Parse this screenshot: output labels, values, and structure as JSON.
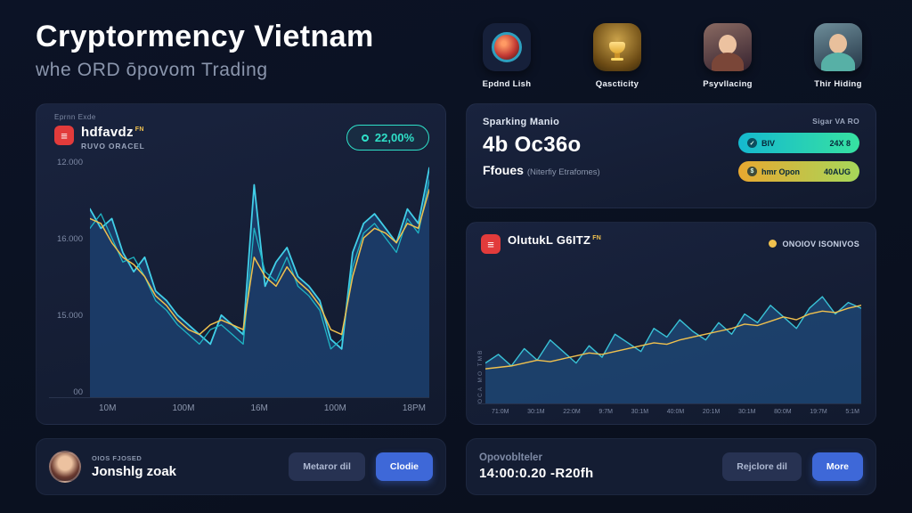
{
  "header": {
    "title": "Cryptormency Vietnam",
    "subtitle": "whe ORD ōpovom Trading"
  },
  "nav": {
    "items": [
      {
        "label": "Epdnd Lish",
        "icon": "logo-avatar-icon"
      },
      {
        "label": "Qascticity",
        "icon": "trophy-icon"
      },
      {
        "label": "Psyvllacing",
        "icon": "woman-avatar-icon"
      },
      {
        "label": "Thir Hiding",
        "icon": "man-avatar-icon"
      }
    ]
  },
  "price_card": {
    "eyebrow": "Eprnn Exde",
    "coin": {
      "name": "hdfavdz",
      "sup": "FN",
      "subtitle": "RUVO ORACEL",
      "icon_glyph": "≡"
    },
    "change_badge": "22,00%"
  },
  "stats_card": {
    "title": "Sparking Manio",
    "title_right": "Sigar VA RO",
    "value": "4b Oc36o",
    "value_bold": "Ffoues",
    "value_note": "(Niterfiy Etrafomes)",
    "pills": [
      {
        "left": "BIV",
        "right": "24X 8",
        "icon_glyph": "✓"
      },
      {
        "left": "hmr Opon",
        "right": "40AUG",
        "icon_glyph": "$"
      }
    ]
  },
  "volume_card": {
    "coin": {
      "name": "OlutukL G6ITZ",
      "sup": "FN",
      "icon_glyph": "≡"
    },
    "right_label": "ONOIOV ISONIVOS",
    "y_label": "OCA MO TMB"
  },
  "user_bar": {
    "eyebrow": "OIOS FJOSED",
    "name": "Jonshlg zoak",
    "buttons": [
      {
        "label": "Metaror dil"
      },
      {
        "label": "Clodie"
      }
    ]
  },
  "summary_bar": {
    "label": "Opovoblteler",
    "value": "14:00:0.20 -R20fh",
    "buttons": [
      {
        "label": "Rejclore dil"
      },
      {
        "label": "More"
      }
    ]
  },
  "accent_colors": {
    "teal": "#2fe0c8",
    "cyan": "#41cfe8",
    "yellow": "#f0c14e",
    "blue": "#3e68d8",
    "red": "#e23b3b"
  },
  "chart_data": [
    {
      "type": "line",
      "title": "hdfavdz RUVO ORACEL price",
      "y_ticks": [
        "12.000",
        "16.000",
        "15.000",
        "00"
      ],
      "x_ticks": [
        "10M",
        "100M",
        "16M",
        "100M",
        "18PM"
      ],
      "ylim": [
        0,
        100
      ],
      "grid": false,
      "legend": "none",
      "series": [
        {
          "name": "line-cyan",
          "color": "#41cfe8",
          "width": 1.8,
          "fill": true,
          "fill_color": "#1c3f6f",
          "fill_opacity": 0.85,
          "values": [
            78,
            70,
            74,
            60,
            52,
            58,
            44,
            40,
            34,
            30,
            26,
            22,
            34,
            30,
            26,
            88,
            46,
            56,
            62,
            50,
            46,
            40,
            24,
            20,
            60,
            72,
            76,
            70,
            64,
            78,
            72,
            95
          ]
        },
        {
          "name": "line-teal",
          "color": "#1fb4c4",
          "width": 1.3,
          "values": [
            70,
            76,
            66,
            56,
            58,
            50,
            40,
            36,
            30,
            26,
            22,
            28,
            30,
            26,
            22,
            70,
            52,
            48,
            58,
            46,
            42,
            36,
            20,
            24,
            54,
            68,
            72,
            66,
            60,
            74,
            68,
            90
          ]
        },
        {
          "name": "line-yellow",
          "color": "#f0c14e",
          "width": 1.5,
          "values": [
            74,
            72,
            64,
            58,
            55,
            50,
            42,
            38,
            32,
            28,
            26,
            30,
            32,
            30,
            28,
            58,
            50,
            46,
            54,
            48,
            44,
            38,
            28,
            26,
            50,
            66,
            70,
            68,
            64,
            72,
            70,
            86
          ]
        }
      ]
    },
    {
      "type": "area",
      "title": "OlutukL G6ITZ volume",
      "x_ticks": [
        "71:0M",
        "30:1M",
        "22:0M",
        "9:7M",
        "30:1M",
        "40:0M",
        "20:1M",
        "30:1M",
        "80:0M",
        "19:7M",
        "5:1M"
      ],
      "ylim": [
        0,
        100
      ],
      "grid": false,
      "legend": "none",
      "series": [
        {
          "name": "volume-area",
          "color": "#39c2d6",
          "width": 1.4,
          "fill": true,
          "fill_color": "#1d4470",
          "fill_opacity": 0.9,
          "values": [
            28,
            34,
            26,
            38,
            30,
            44,
            36,
            28,
            40,
            32,
            48,
            42,
            36,
            52,
            46,
            58,
            50,
            44,
            56,
            48,
            62,
            56,
            68,
            60,
            52,
            66,
            74,
            62,
            70,
            66
          ]
        },
        {
          "name": "trend-yellow",
          "color": "#f0c14e",
          "width": 1.4,
          "values": [
            24,
            25,
            26,
            28,
            30,
            29,
            31,
            33,
            35,
            34,
            36,
            38,
            40,
            42,
            41,
            44,
            46,
            48,
            50,
            52,
            55,
            54,
            57,
            60,
            58,
            62,
            64,
            63,
            66,
            68
          ]
        }
      ]
    }
  ]
}
